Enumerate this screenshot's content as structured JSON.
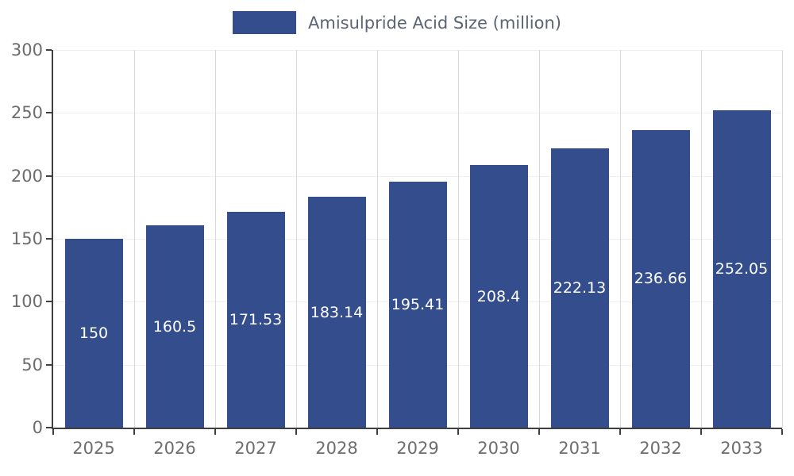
{
  "chart_data": {
    "type": "bar",
    "title": "",
    "legend": "Amisulpride Acid Size (million)",
    "categories": [
      "2025",
      "2026",
      "2027",
      "2028",
      "2029",
      "2030",
      "2031",
      "2032",
      "2033"
    ],
    "values": [
      150,
      160.5,
      171.53,
      183.14,
      195.41,
      208.4,
      222.13,
      236.66,
      252.05
    ],
    "value_labels": [
      "150",
      "160.5",
      "171.53",
      "183.14",
      "195.41",
      "208.4",
      "222.13",
      "236.66",
      "252.05"
    ],
    "xlabel": "",
    "ylabel": "",
    "ylim": [
      0,
      300
    ],
    "yticks": [
      "0",
      "50",
      "100",
      "150",
      "200",
      "250",
      "300"
    ],
    "bar_color": "#344e8d",
    "axis_color": "#3f3f3f",
    "grid": true,
    "legend_position": "top",
    "value_label_position": "inside-center"
  }
}
